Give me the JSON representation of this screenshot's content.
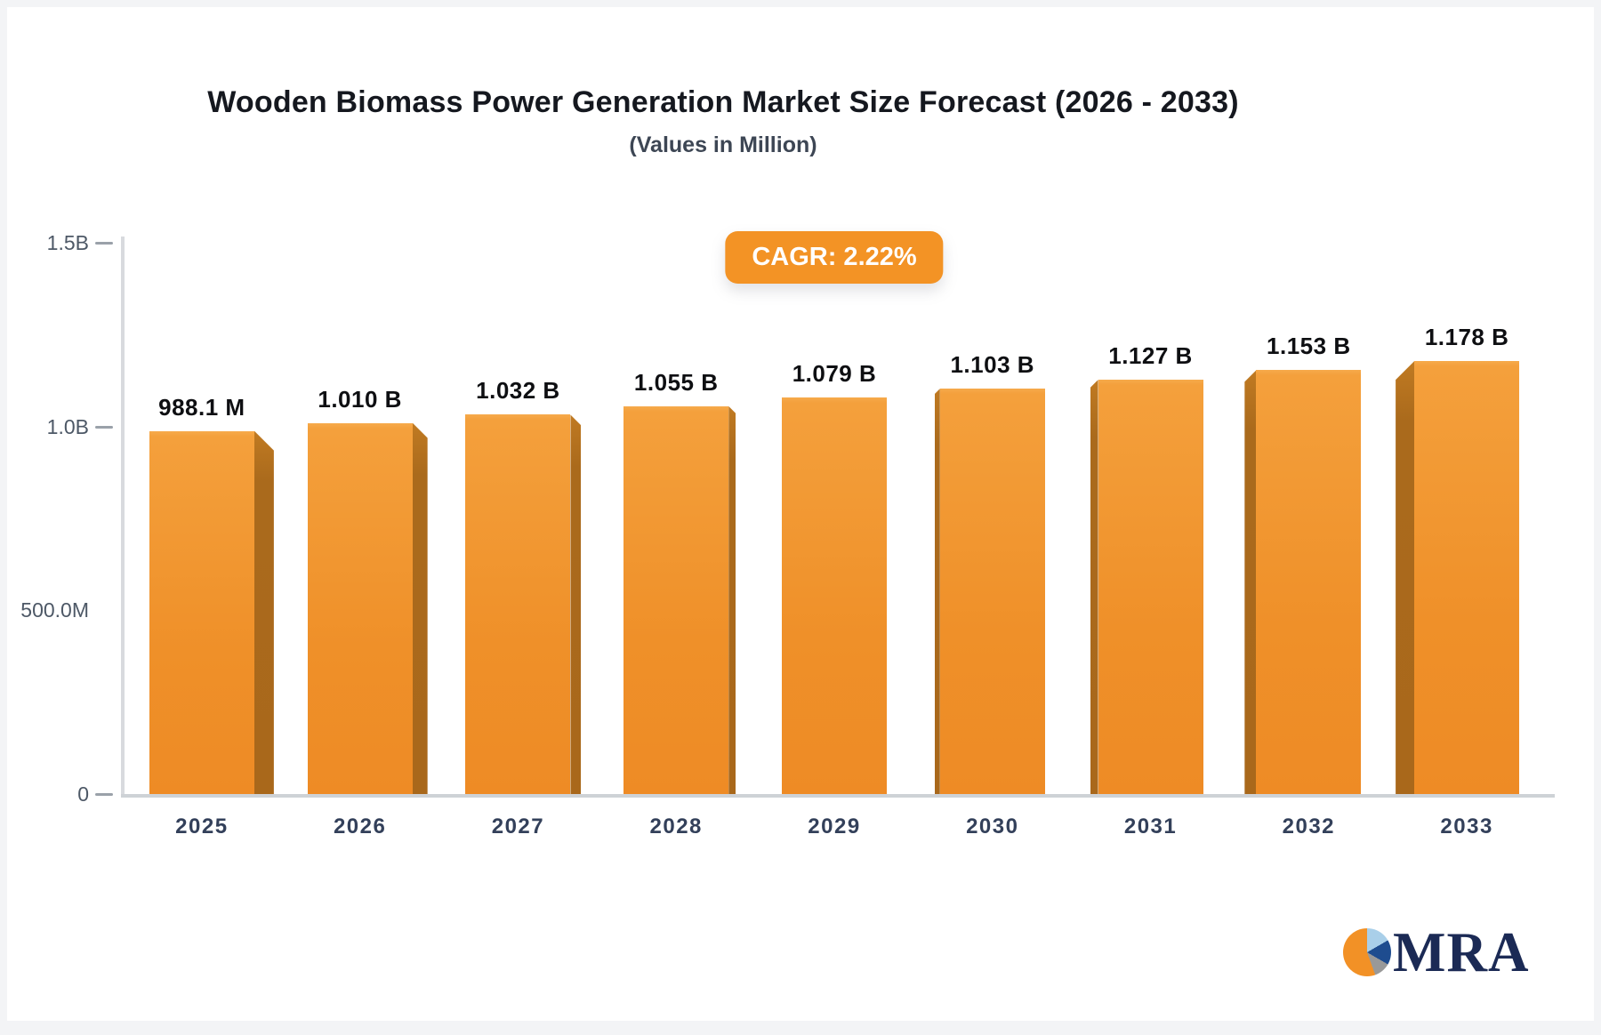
{
  "chart_data": {
    "type": "bar",
    "title": "Wooden Biomass Power Generation Market Size Forecast (2026 - 2033)",
    "subtitle": "(Values in Million)",
    "cagr_label": "CAGR: 2.22%",
    "categories": [
      "2025",
      "2026",
      "2027",
      "2028",
      "2029",
      "2030",
      "2031",
      "2032",
      "2033"
    ],
    "values_millions": [
      988.1,
      1010,
      1032,
      1055,
      1079,
      1103,
      1127,
      1153,
      1178
    ],
    "bar_labels": [
      "988.1 M",
      "1.010 B",
      "1.032 B",
      "1.055 B",
      "1.079 B",
      "1.103 B",
      "1.127 B",
      "1.153 B",
      "1.178 B"
    ],
    "ylabel": "",
    "xlabel": "",
    "ylim_millions": [
      0,
      1500
    ],
    "yticks": [
      {
        "label": "1.5B",
        "value_millions": 1500,
        "dash": true
      },
      {
        "label": "1.0B",
        "value_millions": 1000,
        "dash": true
      },
      {
        "label": "500.0M",
        "value_millions": 500,
        "dash": false
      },
      {
        "label": "0",
        "value_millions": 0,
        "dash": true
      }
    ],
    "grid": false,
    "legend": "none",
    "bar_color": "#ef9029",
    "bar_side_color": "#a9681b",
    "accent_color": "#f39325"
  },
  "logo": {
    "wordmark": "MRA",
    "text_color": "#1b2a55",
    "pie_colors": {
      "light_blue": "#a9cfe9",
      "navy": "#1e4c8f",
      "gray": "#999999",
      "orange": "#f29126"
    }
  }
}
